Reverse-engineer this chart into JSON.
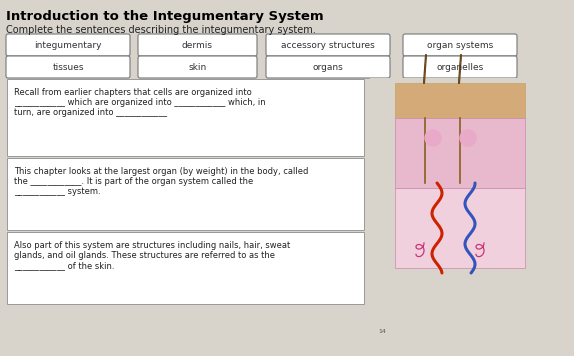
{
  "title": "Introduction to the Integumentary System",
  "subtitle": "Complete the sentences describing the integumentary system.",
  "word_bank": [
    [
      "integumentary",
      "dermis",
      "accessory structures",
      "organ systems"
    ],
    [
      "tissues",
      "skin",
      "organs",
      "organelles"
    ]
  ],
  "paragraph1_lines": [
    "Recall from earlier chapters that cells are organized into",
    "____________ which are organized into ____________ which, in",
    "turn, are organized into ____________"
  ],
  "paragraph2_lines": [
    "This chapter looks at the largest organ (by weight) in the body, called",
    "the ____________. It is part of the organ system called the",
    "____________ system."
  ],
  "paragraph3_lines": [
    "Also part of this system are structures including nails, hair, sweat",
    "glands, and oil glands. These structures are referred to as the",
    "____________ of the skin."
  ],
  "bg_color": "#d8d4cc",
  "box_bg": "#ffffff",
  "box_border": "#999999",
  "word_bank_border": "#777777",
  "title_fontsize": 9.5,
  "subtitle_fontsize": 7,
  "text_fontsize": 6,
  "word_fontsize": 6.5
}
